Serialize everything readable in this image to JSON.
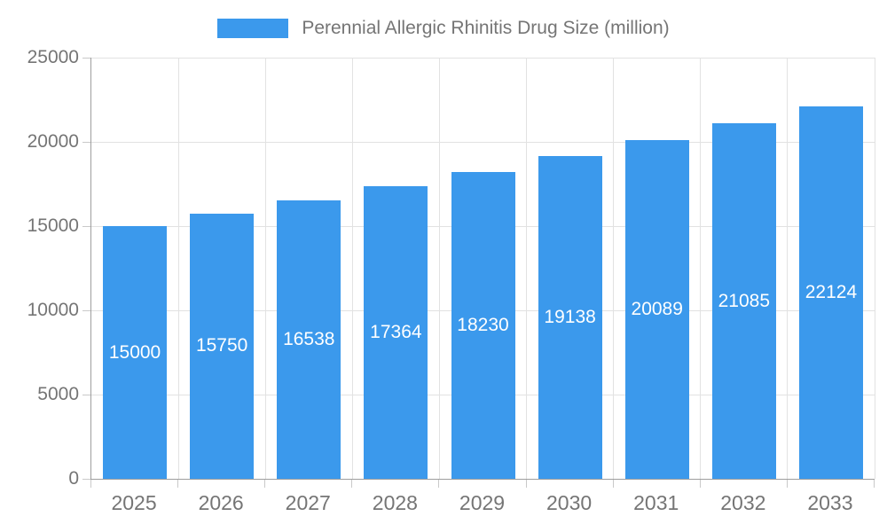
{
  "chart_data": {
    "type": "bar",
    "title": "Perennial Allergic Rhinitis Drug Size (million)",
    "categories": [
      "2025",
      "2026",
      "2027",
      "2028",
      "2029",
      "2030",
      "2031",
      "2032",
      "2033"
    ],
    "values": [
      15000,
      15750,
      16538,
      17364,
      18230,
      19138,
      20089,
      21085,
      22124
    ],
    "value_labels": [
      "15000",
      "15750",
      "16538",
      "17364",
      "18230",
      "19138",
      "20089",
      "21085",
      "22124"
    ],
    "xlabel": "",
    "ylabel": "",
    "ylim": [
      0,
      25000
    ],
    "yticks": [
      0,
      5000,
      10000,
      15000,
      20000,
      25000
    ],
    "ytick_labels": [
      "0",
      "5000",
      "10000",
      "15000",
      "20000",
      "25000"
    ],
    "grid": "on",
    "legend_position": "top-center",
    "bar_label_position": "center-inside",
    "colors": {
      "bar": "#3B99EC",
      "axis_line": "#9E9E9E",
      "grid_line": "#E2E2E2",
      "tick_mark": "#C9C9C9",
      "axis_text": "#757575",
      "legend_text": "#757575",
      "bar_value_text": "#FFFFFF",
      "background": "#FFFFFF"
    }
  }
}
